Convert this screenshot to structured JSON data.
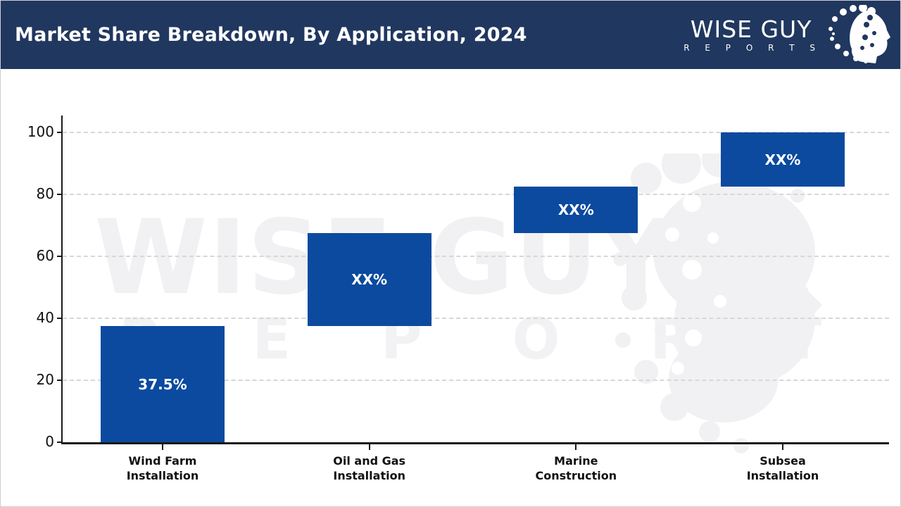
{
  "header": {
    "title": "Market Share Breakdown, By Application, 2024",
    "logo": {
      "line1": "WISE GUY",
      "line2": "R E P O R T S"
    }
  },
  "watermark": {
    "line1": "WISE GUY",
    "line2": "R E P O R T S"
  },
  "colors": {
    "header_bg": "#20375F",
    "bar": "#0B4A9F",
    "grid": "#d7d7d7",
    "axis": "#1a1a1a",
    "watermark": "#f1f1f3",
    "bar_label": "#ffffff"
  },
  "chart_data": {
    "type": "bar",
    "subtype": "waterfall",
    "title": "Market Share Breakdown, By Application, 2024",
    "xlabel": "",
    "ylabel": "",
    "ylim": [
      0,
      100
    ],
    "yticks": [
      0,
      20,
      40,
      60,
      80,
      100
    ],
    "grid": "horizontal-dashed",
    "legend": "none",
    "categories": [
      "Wind Farm Installation",
      "Oil and Gas Installation",
      "Marine Construction",
      "Subsea Installation"
    ],
    "categories_lines": [
      [
        "Wind Farm",
        "Installation"
      ],
      [
        "Oil and Gas",
        "Installation"
      ],
      [
        "Marine",
        "Construction"
      ],
      [
        "Subsea",
        "Installation"
      ]
    ],
    "segments": [
      {
        "category": "Wind Farm Installation",
        "start": 0,
        "end": 37.5,
        "label": "37.5%"
      },
      {
        "category": "Oil and Gas Installation",
        "start": 37.5,
        "end": 67.5,
        "label": "XX%"
      },
      {
        "category": "Marine Construction",
        "start": 67.5,
        "end": 82.5,
        "label": "XX%"
      },
      {
        "category": "Subsea Installation",
        "start": 82.5,
        "end": 100,
        "label": "XX%"
      }
    ]
  }
}
